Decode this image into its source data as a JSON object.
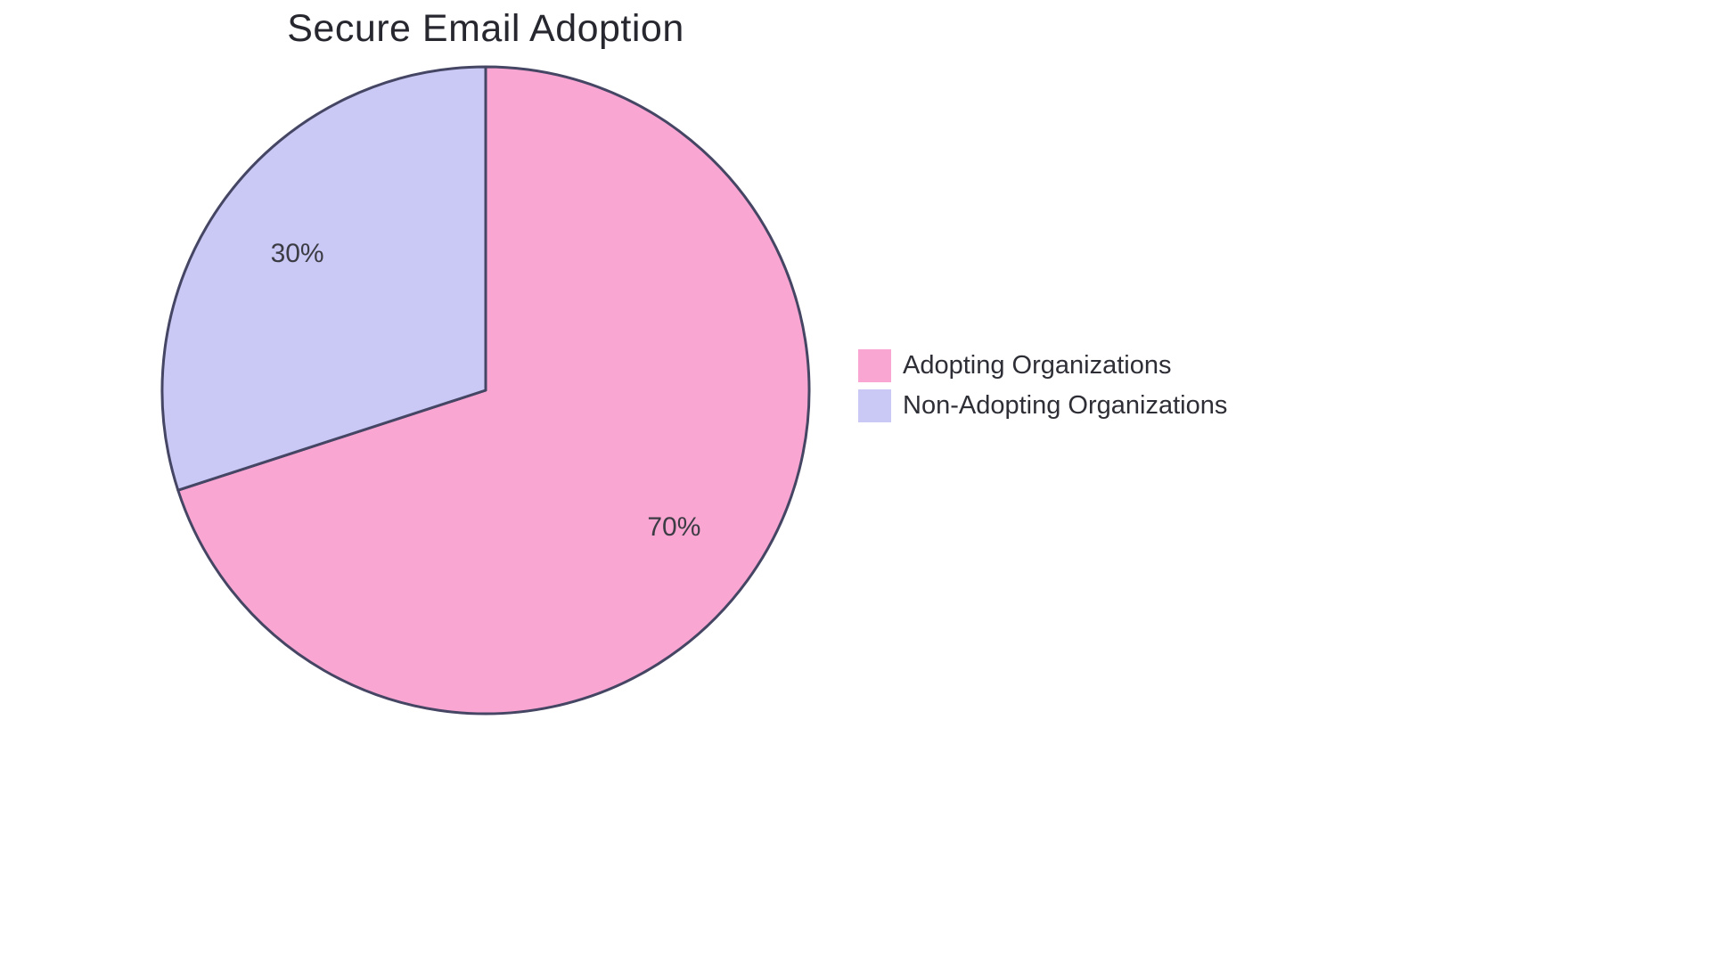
{
  "chart_data": {
    "type": "pie",
    "title": "Secure Email Adoption",
    "labels": [
      "Adopting Organizations",
      "Non-Adopting Organizations"
    ],
    "values": [
      70,
      30
    ],
    "value_labels": [
      "70%",
      "30%"
    ],
    "colors": [
      "#F9A6D2",
      "#CAC8F5"
    ],
    "stroke_color": "#454564",
    "start_position": "top",
    "direction": "clockwise",
    "legend_position": "right",
    "background": "#ffffff"
  }
}
